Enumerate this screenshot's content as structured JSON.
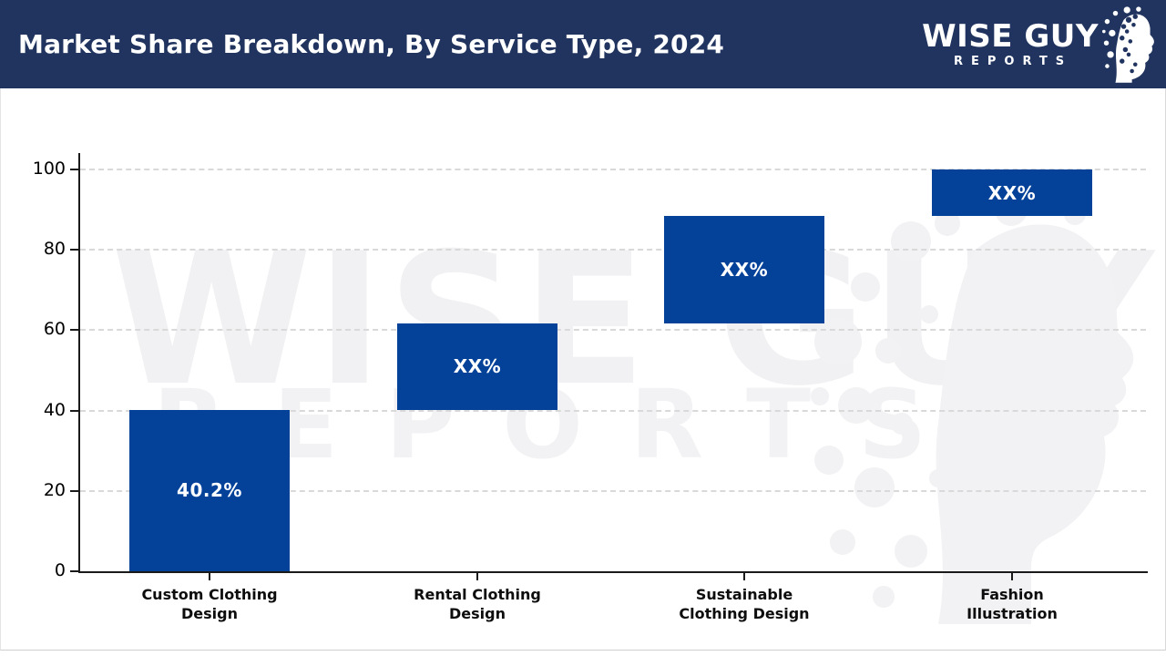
{
  "header": {
    "title": "Market Share Breakdown, By Service Type, 2024",
    "logo": {
      "brand": "WISE GUY",
      "sub": "REPORTS"
    }
  },
  "watermark": {
    "brand": "WISE GUY",
    "sub": "REPORTS"
  },
  "colors": {
    "header_bg": "#20345f",
    "bar_blue": "#04429a",
    "bar_label": "#ffffff",
    "gridline": "#d9d9d9",
    "axis": "#1a1a1a",
    "watermark_gray": "#f1f1f3"
  },
  "chart_data": {
    "type": "bar",
    "subtype": "waterfall",
    "title": "Market Share Breakdown, By Service Type, 2024",
    "orientation": "vertical",
    "categories": [
      "Custom Clothing Design",
      "Rental Clothing Design",
      "Sustainable Clothing Design",
      "Fashion Illustration"
    ],
    "bars": [
      {
        "category": "Custom Clothing Design",
        "cat_lines": [
          "Custom Clothing",
          "Design"
        ],
        "label": "40.2%",
        "value": 40.2,
        "start": 0,
        "end": 40.2
      },
      {
        "category": "Rental Clothing Design",
        "cat_lines": [
          "Rental Clothing",
          "Design"
        ],
        "label": "XX%",
        "value": 21.5,
        "start": 40.2,
        "end": 61.7
      },
      {
        "category": "Sustainable Clothing Design",
        "cat_lines": [
          "Sustainable",
          "Clothing Design"
        ],
        "label": "XX%",
        "value": 26.7,
        "start": 61.7,
        "end": 88.4
      },
      {
        "category": "Fashion Illustration",
        "cat_lines": [
          "Fashion",
          "Illustration"
        ],
        "label": "XX%",
        "value": 11.6,
        "start": 88.4,
        "end": 100
      }
    ],
    "ylim": [
      0,
      100
    ],
    "yticks": [
      0,
      20,
      40,
      60,
      80,
      100
    ],
    "grid": "horizontal dashed",
    "legend": null,
    "xlabel": "",
    "ylabel": ""
  }
}
